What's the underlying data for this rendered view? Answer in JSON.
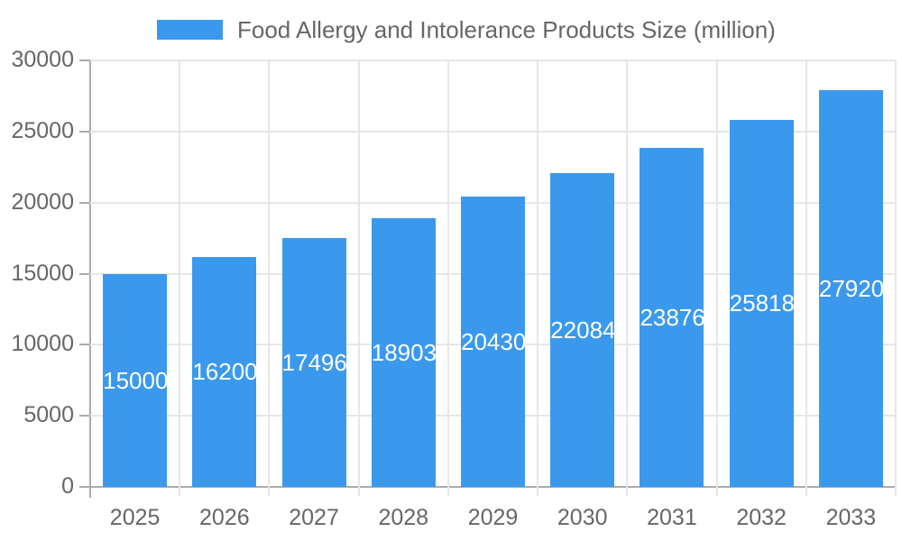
{
  "chart_data": {
    "type": "bar",
    "title": "Food Allergy and Intolerance Products Size (million)",
    "categories": [
      "2025",
      "2026",
      "2027",
      "2028",
      "2029",
      "2030",
      "2031",
      "2032",
      "2033"
    ],
    "values": [
      15000,
      16200,
      17496,
      18903,
      20430,
      22084,
      23876,
      25818,
      27920
    ],
    "xlabel": "",
    "ylabel": "",
    "ylim": [
      0,
      30000
    ],
    "ytick_step": 5000,
    "ytick_labels": [
      "0",
      "5000",
      "10000",
      "15000",
      "20000",
      "25000",
      "30000"
    ],
    "grid": true,
    "legend_position": "top",
    "bar_labels_inside": true,
    "colors": {
      "bar": "#3B99ED",
      "bar_label": "#FFFFFF",
      "axis_line": "#ABABAB",
      "grid_line": "#E6E6E6",
      "tick_label": "#666666",
      "title": "#666666",
      "background": "#FFFFFF"
    }
  }
}
